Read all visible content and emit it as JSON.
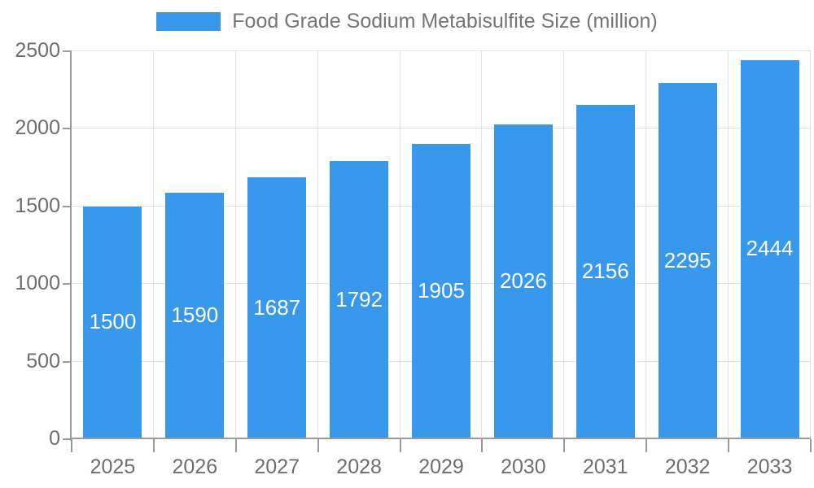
{
  "chart_data": {
    "type": "bar",
    "title": "Food Grade Sodium Metabisulfite Size (million)",
    "legend": [
      "Food Grade Sodium Metabisulfite Size (million)"
    ],
    "legend_position": "top",
    "categories": [
      "2025",
      "2026",
      "2027",
      "2028",
      "2029",
      "2030",
      "2031",
      "2032",
      "2033"
    ],
    "values": [
      1500,
      1590,
      1687,
      1792,
      1905,
      2026,
      2156,
      2295,
      2444
    ],
    "xlabel": "",
    "ylabel": "",
    "ylim": [
      0,
      2500
    ],
    "yticks": [
      0,
      500,
      1000,
      1500,
      2000,
      2500
    ],
    "grid": true,
    "colors": {
      "bar": "#3899ec",
      "grid": "#e3e3e3",
      "axis": "#9b9b9b",
      "tick_label": "#6e6e6e",
      "legend_label": "#757575",
      "value_label": "#ffffff",
      "background": "#ffffff"
    }
  }
}
